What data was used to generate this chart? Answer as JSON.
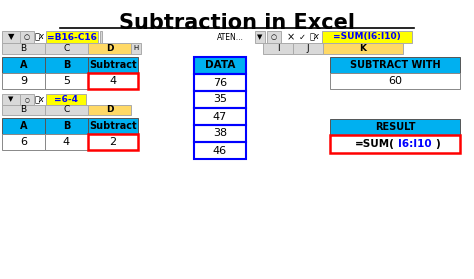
{
  "title": "Subtraction in Excel",
  "title_underline": true,
  "bg_color": "#ffffff",
  "cyan_color": "#00B0F0",
  "yellow_color": "#FFFF00",
  "red_color": "#FF0000",
  "dark_text": "#1F1F1F",
  "blue_border": "#0000FF",
  "formula_bar1": "=B16-C16",
  "formula_bar2": "=6-4",
  "formula_bar3": "=SUM(I6:I10)",
  "col_headers1": [
    "B",
    "C",
    "D"
  ],
  "col_headers2": [
    "B",
    "C",
    "D"
  ],
  "table1_headers": [
    "A",
    "B",
    "Subtract"
  ],
  "table1_row": [
    "9",
    "5",
    "4"
  ],
  "table2_headers": [
    "A",
    "B",
    "Subtract"
  ],
  "table2_row": [
    "6",
    "4",
    "2"
  ],
  "data_header": "DATA",
  "data_values": [
    "76",
    "35",
    "47",
    "38",
    "46"
  ],
  "subtract_with_header": "SUBTRACT WITH",
  "subtract_with_value": "60",
  "result_header": "RESULT",
  "result_formula": "=SUM(I6:I10)",
  "formula_highlight1": "#FFFF00",
  "formula_highlight2": "#FFFF00",
  "col_header_D_highlight": "#FFD966",
  "col_header_K_highlight": "#FFD966"
}
